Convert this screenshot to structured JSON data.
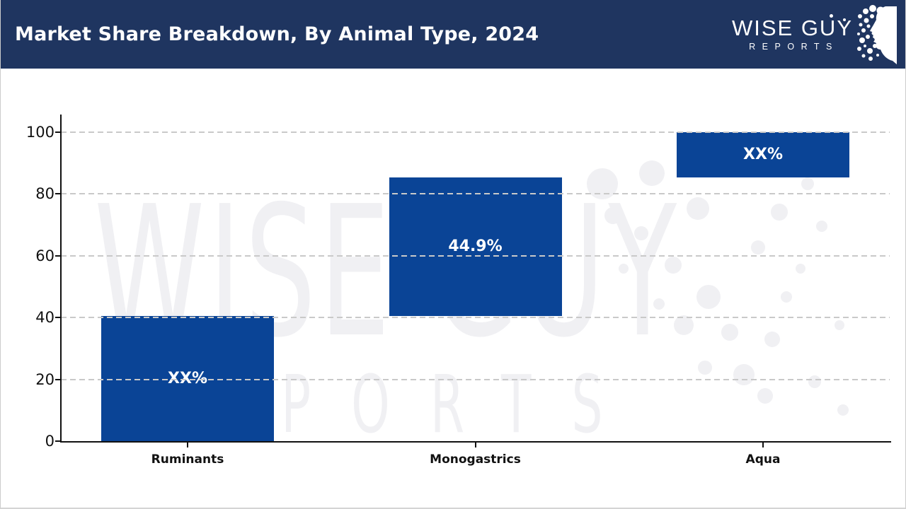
{
  "header": {
    "title": "Market Share Breakdown, By Animal Type, 2024",
    "background": "#1f3560"
  },
  "logo": {
    "line1": "WISE GUY",
    "line2": "REPORTS"
  },
  "watermark": {
    "line1": "WISE GUY",
    "line2": "REPORTS"
  },
  "chart_data": {
    "type": "bar",
    "subtype": "waterfall",
    "title": "Market Share Breakdown, By Animal Type, 2024",
    "categories": [
      "Ruminants",
      "Monogastrics",
      "Aqua"
    ],
    "bars": [
      {
        "category": "Ruminants",
        "from": 0,
        "to": 40.5,
        "value_label": "XX%"
      },
      {
        "category": "Monogastrics",
        "from": 40.5,
        "to": 85.4,
        "value_label": "44.9%"
      },
      {
        "category": "Aqua",
        "from": 85.4,
        "to": 100,
        "value_label": "XX%"
      }
    ],
    "xlabel": "",
    "ylabel": "",
    "ylim": [
      0,
      100
    ],
    "yticks": [
      0,
      20,
      40,
      60,
      80,
      100
    ],
    "grid": "horizontal-dashed",
    "legend": "none",
    "bar_color": "#0a4496",
    "bar_label_color": "#ffffff"
  }
}
